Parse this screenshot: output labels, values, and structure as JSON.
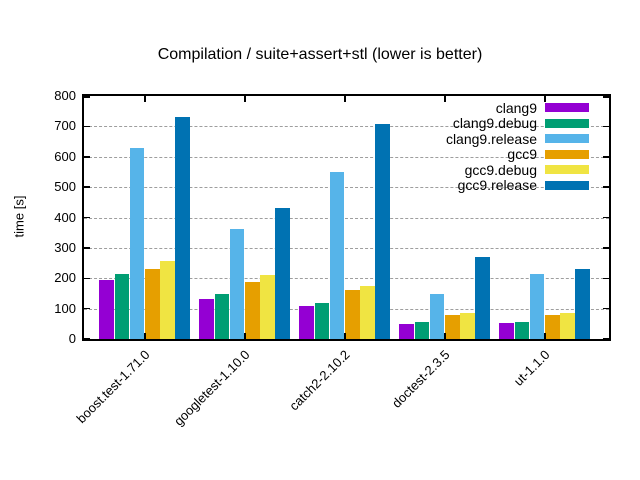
{
  "chart_data": {
    "type": "bar",
    "title": "Compilation / suite+assert+stl (lower is better)",
    "xlabel": "",
    "ylabel": "time [s]",
    "ylim": [
      0,
      800
    ],
    "yticks": [
      0,
      100,
      200,
      300,
      400,
      500,
      600,
      700,
      800
    ],
    "grid": "horizontal dashed",
    "legend_position": "top-right inside plot",
    "categories": [
      "boost.test-1.71.0",
      "googletest-1.10.0",
      "catch2-2.10.2",
      "doctest-2.3.5",
      "ut-1.1.0"
    ],
    "series": [
      {
        "name": "clang9",
        "color": "#9400d3",
        "values": [
          195,
          131,
          108,
          50,
          54
        ]
      },
      {
        "name": "clang9.debug",
        "color": "#009e73",
        "values": [
          213,
          149,
          117,
          57,
          57
        ]
      },
      {
        "name": "clang9.release",
        "color": "#56b4e9",
        "values": [
          630,
          362,
          550,
          147,
          215
        ]
      },
      {
        "name": "gcc9",
        "color": "#e69f00",
        "values": [
          230,
          188,
          161,
          80,
          78
        ]
      },
      {
        "name": "gcc9.debug",
        "color": "#f0e442",
        "values": [
          256,
          210,
          175,
          86,
          86
        ]
      },
      {
        "name": "gcc9.release",
        "color": "#0072b2",
        "values": [
          731,
          430,
          707,
          270,
          232
        ]
      }
    ],
    "axis_color": "#000000",
    "grid_color": "#9e9e9e",
    "background_color": "#ffffff"
  }
}
